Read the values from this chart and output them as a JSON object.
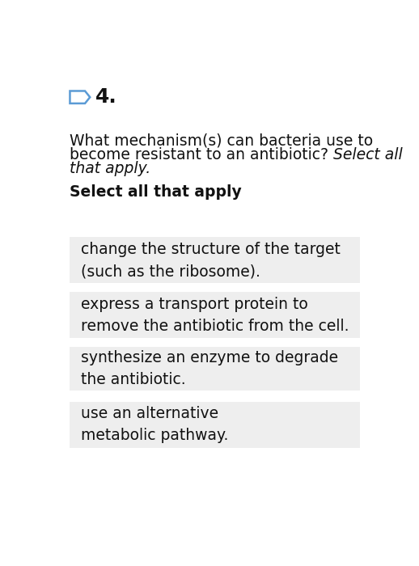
{
  "background_color": "#ffffff",
  "question_number": "4.",
  "pentagon_color": "#5b9bd5",
  "select_label": "Select all that apply",
  "line1": "What mechanism(s) can bacteria use to",
  "line2_normal": "become resistant to an antibiotic? ",
  "line2_italic": "Select all",
  "line3_italic": "that apply.",
  "options": [
    "change the structure of the target\n(such as the ribosome).",
    "express a transport protein to\nremove the antibiotic from the cell.",
    "synthesize an enzyme to degrade\nthe antibiotic.",
    "use an alternative\nmetabolic pathway."
  ],
  "option_bg_color": "#eeeeee",
  "option_text_color": "#111111",
  "option_font_size": 13.5,
  "question_font_size": 13.5,
  "select_font_size": 13.5,
  "number_font_size": 18
}
